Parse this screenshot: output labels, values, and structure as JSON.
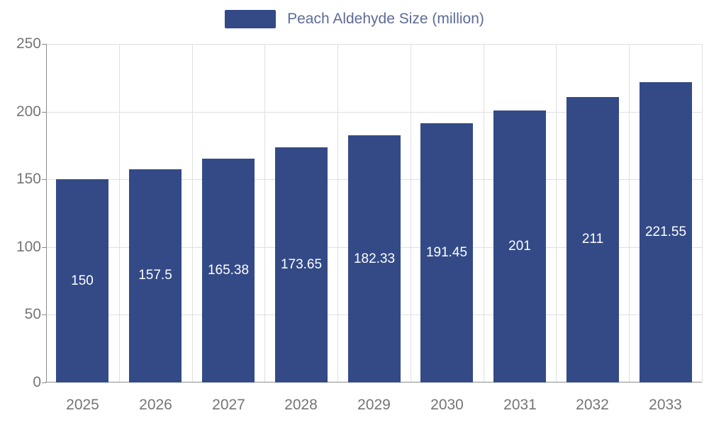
{
  "legend": {
    "label": "Peach Aldehyde Size (million)",
    "swatch_color": "#334a87"
  },
  "chart_data": {
    "type": "bar",
    "title": "Peach Aldehyde Size (million)",
    "categories": [
      "2025",
      "2026",
      "2027",
      "2028",
      "2029",
      "2030",
      "2031",
      "2032",
      "2033"
    ],
    "values": [
      150,
      157.5,
      165.38,
      173.65,
      182.33,
      191.45,
      201,
      211,
      221.55
    ],
    "value_labels": [
      "150",
      "157.5",
      "165.38",
      "173.65",
      "182.33",
      "191.45",
      "201",
      "211",
      "221.55"
    ],
    "xlabel": "",
    "ylabel": "",
    "ylim": [
      0,
      250
    ],
    "yticks": [
      0,
      50,
      100,
      150,
      200,
      250
    ],
    "grid": true,
    "legend_position": "top",
    "bar_color": "#334a87",
    "bar_label_color": "#ffffff",
    "axis_color": "#8c8c8c",
    "grid_color": "#e0e0e0",
    "tick_text_color": "#757575"
  }
}
